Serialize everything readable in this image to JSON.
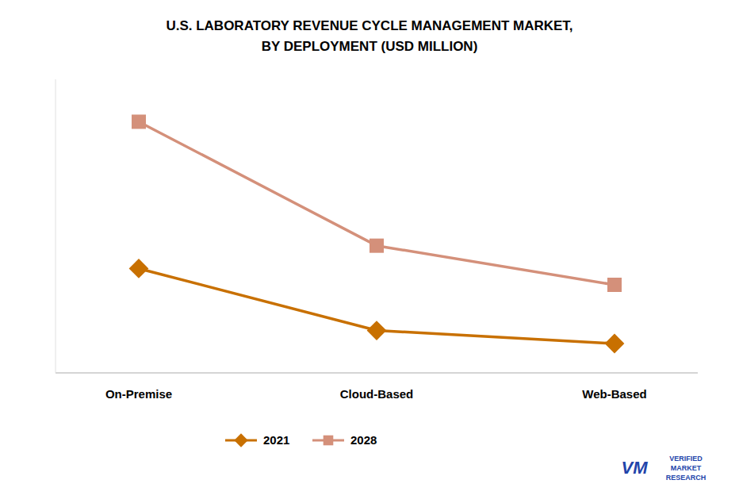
{
  "chart_data": {
    "type": "line",
    "title": "U.S. LABORATORY REVENUE CYCLE MANAGEMENT MARKET,\nBY DEPLOYMENT (USD MILLION)",
    "categories": [
      "On-Premise",
      "Cloud-Based",
      "Web-Based"
    ],
    "series": [
      {
        "name": "2021",
        "color": "#C87000",
        "marker": "diamond",
        "values": [
          420,
          230,
          190
        ]
      },
      {
        "name": "2028",
        "color": "#D4907A",
        "marker": "square",
        "values": [
          870,
          490,
          370
        ]
      }
    ],
    "ylim": [
      100,
      1000
    ],
    "tick_labels": "x",
    "grid": false,
    "legend": "bottom",
    "annotations": [
      "VM",
      "VERIFIED\nMARKET\nRESEARCH"
    ]
  }
}
